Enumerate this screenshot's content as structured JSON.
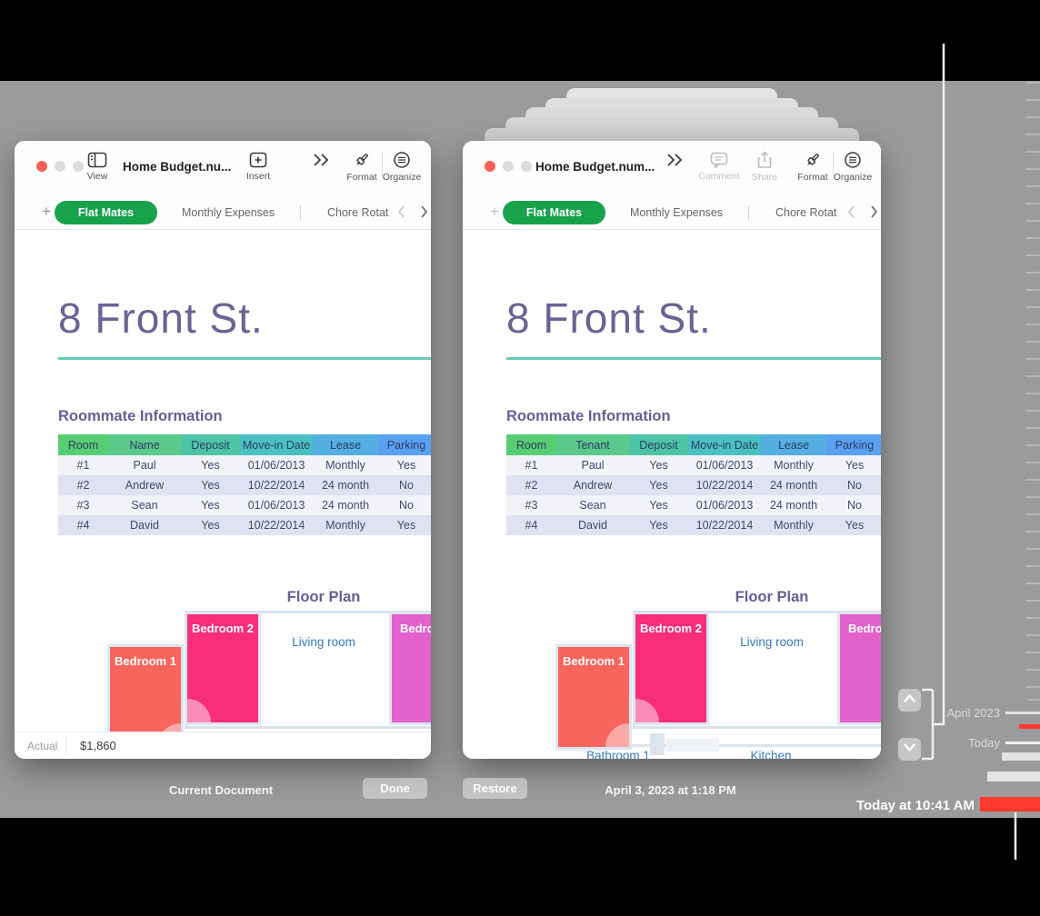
{
  "chrome": {
    "left_window": {
      "title": "Home Budget.nu...",
      "toolbar": {
        "view": "View",
        "insert": "Insert",
        "format": "Format",
        "organize": "Organize"
      }
    },
    "right_window": {
      "title": "Home Budget.num...",
      "toolbar": {
        "comment": "Comment",
        "share": "Share",
        "format": "Format",
        "organize": "Organize"
      }
    },
    "tabs": {
      "add": "+",
      "active": "Flat Mates",
      "second": "Monthly Expenses",
      "third": "Chore Rotat"
    },
    "colors": {
      "active_tab_green": "#17a24b",
      "traffic_red": "#ff5f57",
      "title_purple": "#6a6393",
      "rule_teal": "#69ccb5"
    }
  },
  "document": {
    "title": "8 Front St.",
    "section_heading": "Roommate Information",
    "table": {
      "headers_left": [
        "Room",
        "Name",
        "Deposit",
        "Move-in Date",
        "Lease",
        "Parking"
      ],
      "headers_right": [
        "Room",
        "Tenant",
        "Deposit",
        "Move-in Date",
        "Lease",
        "Parking"
      ],
      "header_colors": [
        "#58ce74",
        "#5cc98c",
        "#4ec4a6",
        "#4ac0c2",
        "#55aee1",
        "#5aa1f1"
      ],
      "rows": [
        [
          "#1",
          "Paul",
          "Yes",
          "01/06/2013",
          "Monthly",
          "Yes"
        ],
        [
          "#2",
          "Andrew",
          "Yes",
          "10/22/2014",
          "24 month",
          "No"
        ],
        [
          "#3",
          "Sean",
          "Yes",
          "01/06/2013",
          "24 month",
          "No"
        ],
        [
          "#4",
          "David",
          "Yes",
          "10/22/2014",
          "Monthly",
          "Yes"
        ]
      ]
    },
    "floor_plan": {
      "heading": "Floor Plan",
      "bedroom1": "Bedroom 1",
      "bedroom2": "Bedroom 2",
      "bedroom3_partial": "Bedro",
      "living_room": "Living room",
      "bathroom_partial": "Bathroom 1",
      "kitchen_partial": "Kitchen",
      "colors": {
        "bedroom1": "#f7655e",
        "bedroom2": "#f82e79",
        "bedroom3": "#e261ca"
      }
    },
    "footer": {
      "label": "Actual",
      "value": "$1,860"
    }
  },
  "version_browser": {
    "current_label": "Current Document",
    "done_button": "Done",
    "restore_button": "Restore",
    "version_date": "April 3, 2023 at 1:18 PM",
    "timeline": {
      "month_label": "April 2023",
      "today_label": "Today",
      "selected_label": "Today at 10:41 AM",
      "marker_color": "#ff392e",
      "tick_count": 36
    }
  }
}
